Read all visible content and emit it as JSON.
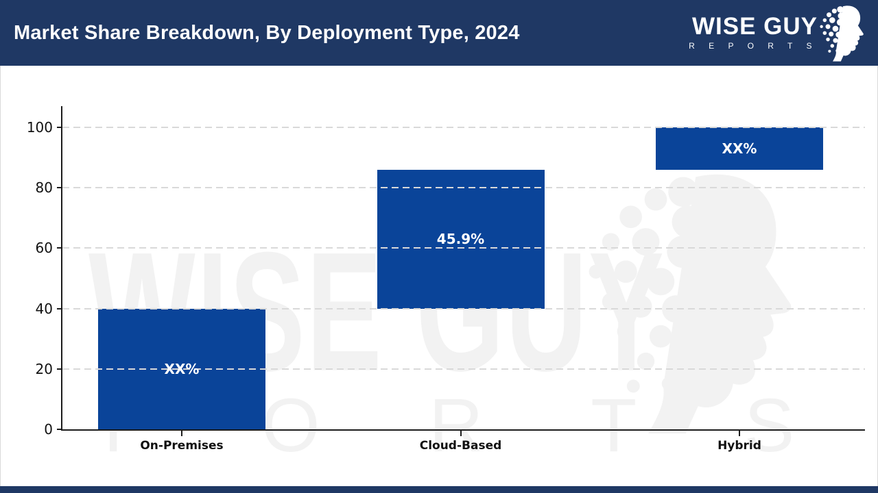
{
  "header": {
    "title": "Market Share Breakdown, By Deployment Type, 2024",
    "logo": {
      "line1": "WISE GUY",
      "line2": "R E P O R T S"
    }
  },
  "watermark": {
    "line1": "WISE GUY",
    "line2": "P O R T S"
  },
  "colors": {
    "header_bg": "#1f3864",
    "footer_bg": "#1f3864",
    "bar": "#0a4499",
    "grid": "#d9d9d9",
    "axis": "#1c1c1c",
    "bar_label_text": "#ffffff",
    "watermark": "#f2f2f2"
  },
  "chart_data": {
    "type": "bar",
    "variant": "floating-waterfall",
    "title": "Market Share Breakdown, By Deployment Type, 2024",
    "categories": [
      "On-Premises",
      "Cloud-Based",
      "Hybrid"
    ],
    "series": [
      {
        "name": "Market Share",
        "bar_bottom": [
          0,
          40,
          85.9
        ],
        "bar_top": [
          40,
          85.9,
          100
        ],
        "bar_labels": [
          "XX%",
          "45.9%",
          "XX%"
        ]
      }
    ],
    "ylim": [
      0,
      100
    ],
    "yticks": [
      0,
      20,
      40,
      60,
      80,
      100
    ],
    "xlabel": "",
    "ylabel": "",
    "grid": "horizontal-dashed",
    "legend": "none"
  }
}
